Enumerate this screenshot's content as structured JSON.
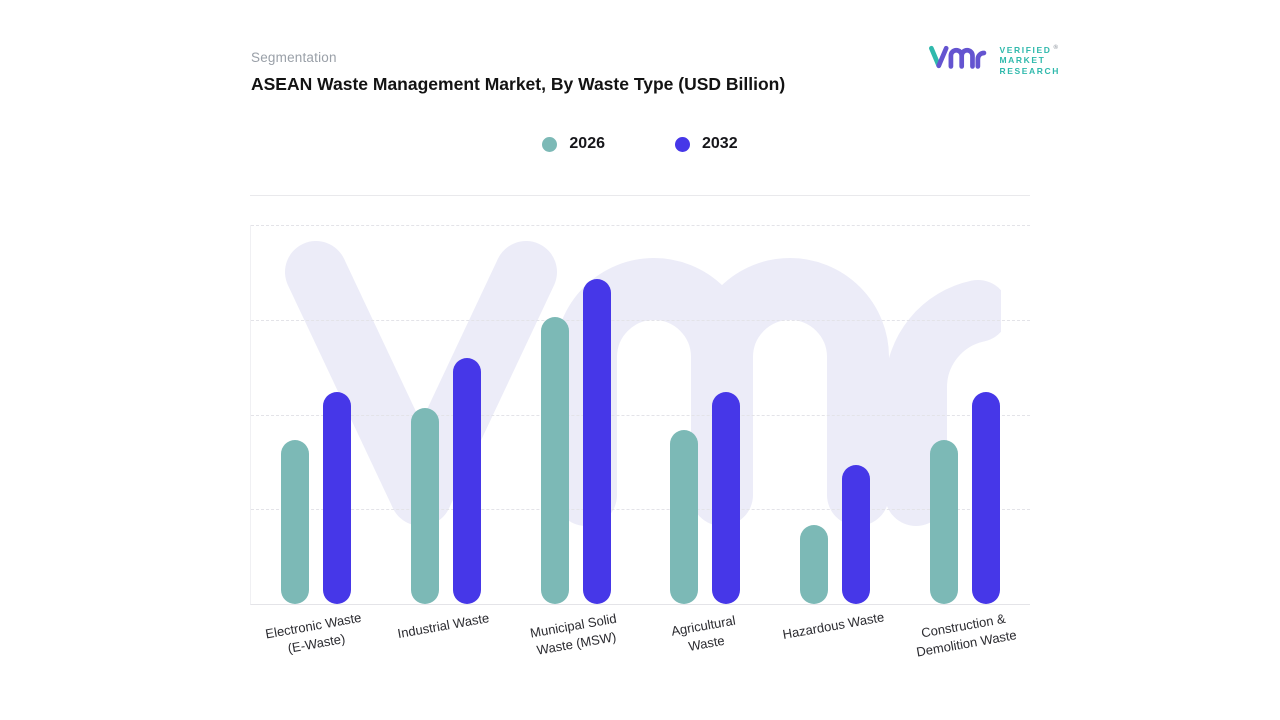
{
  "page": {
    "segmentation_label": "Segmentation",
    "title": "ASEAN Waste Management Market, By Waste Type (USD Billion)"
  },
  "logo": {
    "brand": "vmr",
    "line1": "VERIFIED",
    "line2": "MARKET",
    "line3": "RESEARCH",
    "registered": "®",
    "teal": "#2fb9ac",
    "purple": "#6454d0"
  },
  "legend": [
    {
      "label": "2026",
      "color": "#7cb9b6"
    },
    {
      "label": "2032",
      "color": "#4637e8"
    }
  ],
  "chart_data": {
    "type": "bar",
    "title": "ASEAN Waste Management Market, By Waste Type (USD Billion)",
    "categories": [
      "Electronic Waste\n(E-Waste)",
      "Industrial Waste",
      "Municipal Solid\nWaste (MSW)",
      "Agricultural\nWaste",
      "Hazardous Waste",
      "Construction &\nDemolition Waste"
    ],
    "series": [
      {
        "name": "2026",
        "color": "#7cb9b6",
        "values": [
          5.2,
          6.2,
          9.1,
          5.5,
          2.5,
          5.2
        ]
      },
      {
        "name": "2032",
        "color": "#4637e8",
        "values": [
          6.7,
          7.8,
          10.3,
          6.7,
          4.4,
          6.7
        ]
      }
    ],
    "ylim": [
      0,
      12
    ],
    "xlabel": "",
    "ylabel": "",
    "grid": "horizontal-dashed",
    "legend_position": "top-center",
    "note": "no numeric axis labels shown; values estimated from bar heights"
  }
}
